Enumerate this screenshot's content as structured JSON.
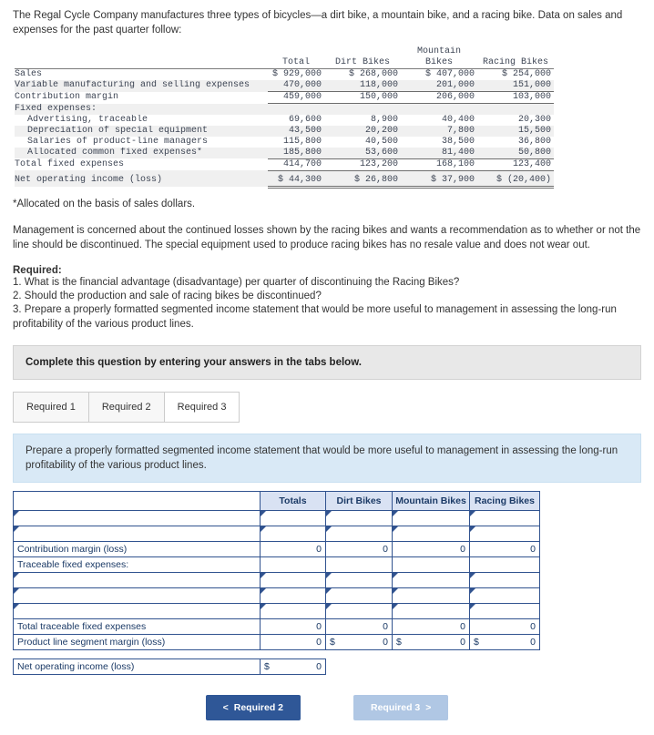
{
  "intro": "The Regal Cycle Company manufactures three types of bicycles—a dirt bike, a mountain bike, and a racing bike. Data on sales and expenses for the past quarter follow:",
  "problem_table": {
    "header_top": [
      "",
      "",
      "Mountain",
      ""
    ],
    "header_bottom": [
      "Total",
      "Dirt Bikes",
      "Bikes",
      "Racing Bikes"
    ],
    "rows": [
      {
        "label": "Sales",
        "values": [
          "$ 929,000",
          "$ 268,000",
          "$ 407,000",
          "$ 254,000"
        ]
      },
      {
        "label": "Variable manufacturing and selling expenses",
        "values": [
          "470,000",
          "118,000",
          "201,000",
          "151,000"
        ],
        "rule": "single"
      },
      {
        "label": "Contribution margin",
        "values": [
          "459,000",
          "150,000",
          "206,000",
          "103,000"
        ],
        "rule": "single"
      },
      {
        "label": "Fixed expenses:",
        "values": [
          "",
          "",
          "",
          ""
        ]
      },
      {
        "label": "Advertising, traceable",
        "indent": true,
        "values": [
          "69,600",
          "8,900",
          "40,400",
          "20,300"
        ]
      },
      {
        "label": "Depreciation of special equipment",
        "indent": true,
        "values": [
          "43,500",
          "20,200",
          "7,800",
          "15,500"
        ]
      },
      {
        "label": "Salaries of product-line managers",
        "indent": true,
        "values": [
          "115,800",
          "40,500",
          "38,500",
          "36,800"
        ]
      },
      {
        "label": "Allocated common fixed expenses*",
        "indent": true,
        "values": [
          "185,800",
          "53,600",
          "81,400",
          "50,800"
        ],
        "rule": "single"
      },
      {
        "label": "Total fixed expenses",
        "values": [
          "414,700",
          "123,200",
          "168,100",
          "123,400"
        ],
        "rule": "single"
      },
      {
        "label": "Net operating income (loss)",
        "gap": true,
        "values": [
          "$ 44,300",
          "$ 26,800",
          "$ 37,900",
          "$ (20,400)"
        ],
        "rule": "double"
      }
    ],
    "footnote": "*Allocated on the basis of sales dollars."
  },
  "management_note": "Management is concerned about the continued losses shown by the racing bikes and wants a recommendation as to whether or not the line should be discontinued. The special equipment used to produce racing bikes has no resale value and does not wear out.",
  "required": {
    "heading": "Required:",
    "items": [
      "1. What is the financial advantage (disadvantage) per quarter of discontinuing the Racing Bikes?",
      "2. Should the production and sale of racing bikes be discontinued?",
      "3. Prepare a properly formatted segmented income statement that would be more useful to management in assessing the long-run profitability of the various product lines."
    ]
  },
  "complete_banner": "Complete this question by entering your answers in the tabs below.",
  "tabs": [
    {
      "label": "Required 1"
    },
    {
      "label": "Required 2"
    },
    {
      "label": "Required 3"
    }
  ],
  "tab_instruction": "Prepare a properly formatted segmented income statement that would be more useful to management in assessing the long-run profitability of the various product lines.",
  "answer_table": {
    "headers": [
      "Totals",
      "Dirt Bikes",
      "Mountain Bikes",
      "Racing Bikes"
    ],
    "rows": [
      {
        "label": "",
        "editable": true,
        "cells": [
          [
            "",
            ""
          ],
          [
            "",
            ""
          ],
          [
            "",
            ""
          ],
          [
            "",
            ""
          ]
        ]
      },
      {
        "label": "",
        "editable": true,
        "cells": [
          [
            "",
            ""
          ],
          [
            "",
            ""
          ],
          [
            "",
            ""
          ],
          [
            "",
            ""
          ]
        ]
      },
      {
        "label": "Contribution margin (loss)",
        "cells": [
          [
            "",
            "0"
          ],
          [
            "",
            "0"
          ],
          [
            "",
            "0"
          ],
          [
            "",
            "0"
          ]
        ]
      },
      {
        "label": "Traceable fixed expenses:",
        "cells": [
          [
            "",
            ""
          ],
          [
            "",
            ""
          ],
          [
            "",
            ""
          ],
          [
            "",
            ""
          ]
        ]
      },
      {
        "label": "",
        "editable": true,
        "cells": [
          [
            "",
            ""
          ],
          [
            "",
            ""
          ],
          [
            "",
            ""
          ],
          [
            "",
            ""
          ]
        ]
      },
      {
        "label": "",
        "editable": true,
        "cells": [
          [
            "",
            ""
          ],
          [
            "",
            ""
          ],
          [
            "",
            ""
          ],
          [
            "",
            ""
          ]
        ]
      },
      {
        "label": "",
        "editable": true,
        "cells": [
          [
            "",
            ""
          ],
          [
            "",
            ""
          ],
          [
            "",
            ""
          ],
          [
            "",
            ""
          ]
        ]
      },
      {
        "label": "Total traceable fixed expenses",
        "cells": [
          [
            "",
            "0"
          ],
          [
            "",
            "0"
          ],
          [
            "",
            "0"
          ],
          [
            "",
            "0"
          ]
        ]
      },
      {
        "label": "Product line segment margin (loss)",
        "cells": [
          [
            "",
            "0"
          ],
          [
            "$",
            "0"
          ],
          [
            "$",
            "0"
          ],
          [
            "$",
            "0"
          ]
        ]
      }
    ],
    "net_row": {
      "label": "Net operating income (loss)",
      "currency": "$",
      "value": "0"
    }
  },
  "nav": {
    "prev": {
      "arrow": "<",
      "label": "Required 2"
    },
    "next": {
      "label": "Required 3",
      "arrow": ">"
    }
  }
}
